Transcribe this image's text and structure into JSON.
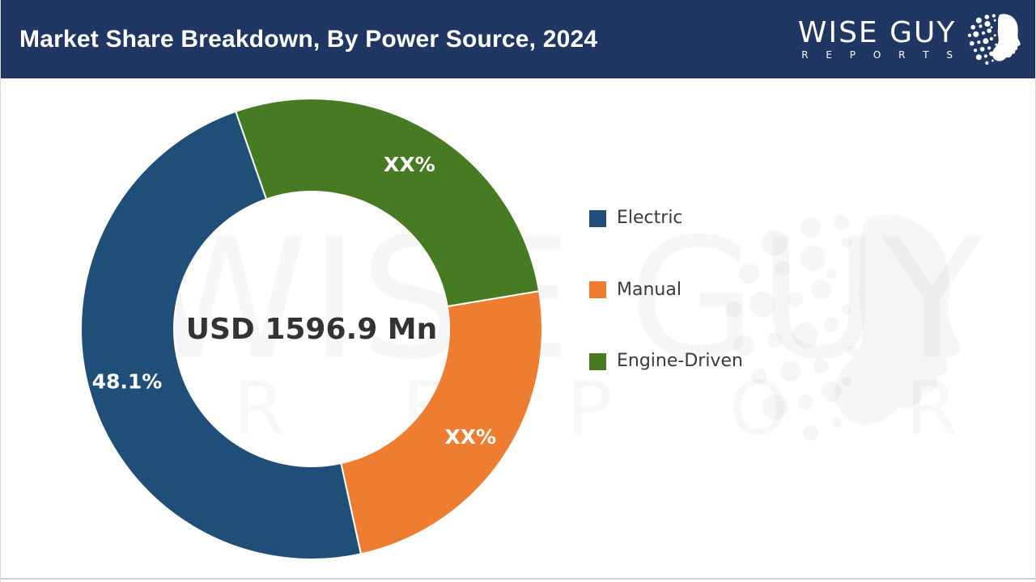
{
  "header": {
    "title": "Market Share Breakdown, By Power Source, 2024",
    "logo": {
      "line1": "WISE GUY",
      "line2": "R E P O R T S"
    }
  },
  "watermark": {
    "line1": "WISE GUY",
    "line2": "R E P O R T S"
  },
  "colors": {
    "header_bg": "#203663",
    "electric": "#1F4E78",
    "manual": "#EE7D32",
    "engine_driven": "#467A23",
    "center_text": "#333333",
    "legend_text": "#3a3a3a"
  },
  "chart_data": {
    "type": "pie",
    "donut": true,
    "title": "Market Share Breakdown, By Power Source, 2024",
    "center_label": "USD 1596.9 Mn",
    "start_angle_deg": 109.2,
    "direction": "counterclockwise",
    "legend_position": "right",
    "slices": [
      {
        "name": "Electric",
        "value_pct": 48.1,
        "label": "48.1%",
        "color": "#1F4E78"
      },
      {
        "name": "Manual",
        "value_pct": 24.2,
        "label": "XX%",
        "color": "#EE7D32"
      },
      {
        "name": "Engine-Driven",
        "value_pct": 27.7,
        "label": "XX%",
        "color": "#467A23"
      }
    ]
  }
}
